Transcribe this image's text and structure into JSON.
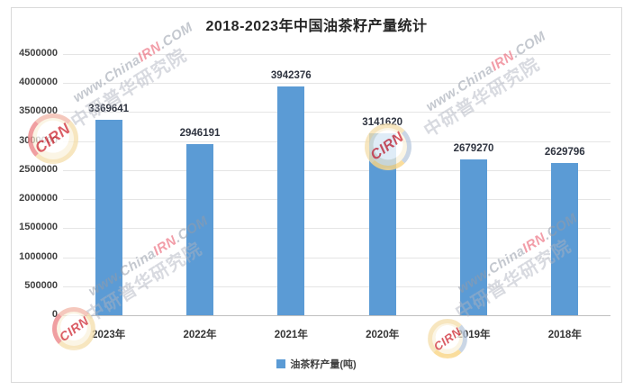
{
  "title": "2018-2023年中国油茶籽产量统计",
  "chart_data": {
    "type": "bar",
    "categories": [
      "2023年",
      "2022年",
      "2021年",
      "2020年",
      "2019年",
      "2018年"
    ],
    "values": [
      3369641,
      2946191,
      3942376,
      3141620,
      2679270,
      2629796
    ],
    "series_name": "油茶籽产量(吨)",
    "title": "2018-2023年中国油茶籽产量统计",
    "xlabel": "",
    "ylabel": "",
    "ylim": [
      0,
      4500000
    ],
    "ytick_step": 500000,
    "ytick_labels": [
      "4500000",
      "4000000",
      "3500000",
      "3000000",
      "2500000",
      "2000000",
      "1500000",
      "1000000",
      "500000",
      "0"
    ],
    "grid": true,
    "legend_position": "bottom",
    "bar_color": "#5B9BD5"
  },
  "legend": {
    "label": "油茶籽产量(吨)",
    "swatch_color": "#5B9BD5"
  },
  "watermark": {
    "site_prefix": "www.China",
    "site_highlight": "IRN",
    "site_suffix": ".COM",
    "org_text": "中研普华研究院",
    "badge_text": "CIRN"
  },
  "colors": {
    "bar": "#5B9BD5",
    "gridline": "#E5E5E5",
    "axis_text": "#404040",
    "watermark_highlight": "#E95C6E",
    "badge_text": "#D4404A"
  }
}
